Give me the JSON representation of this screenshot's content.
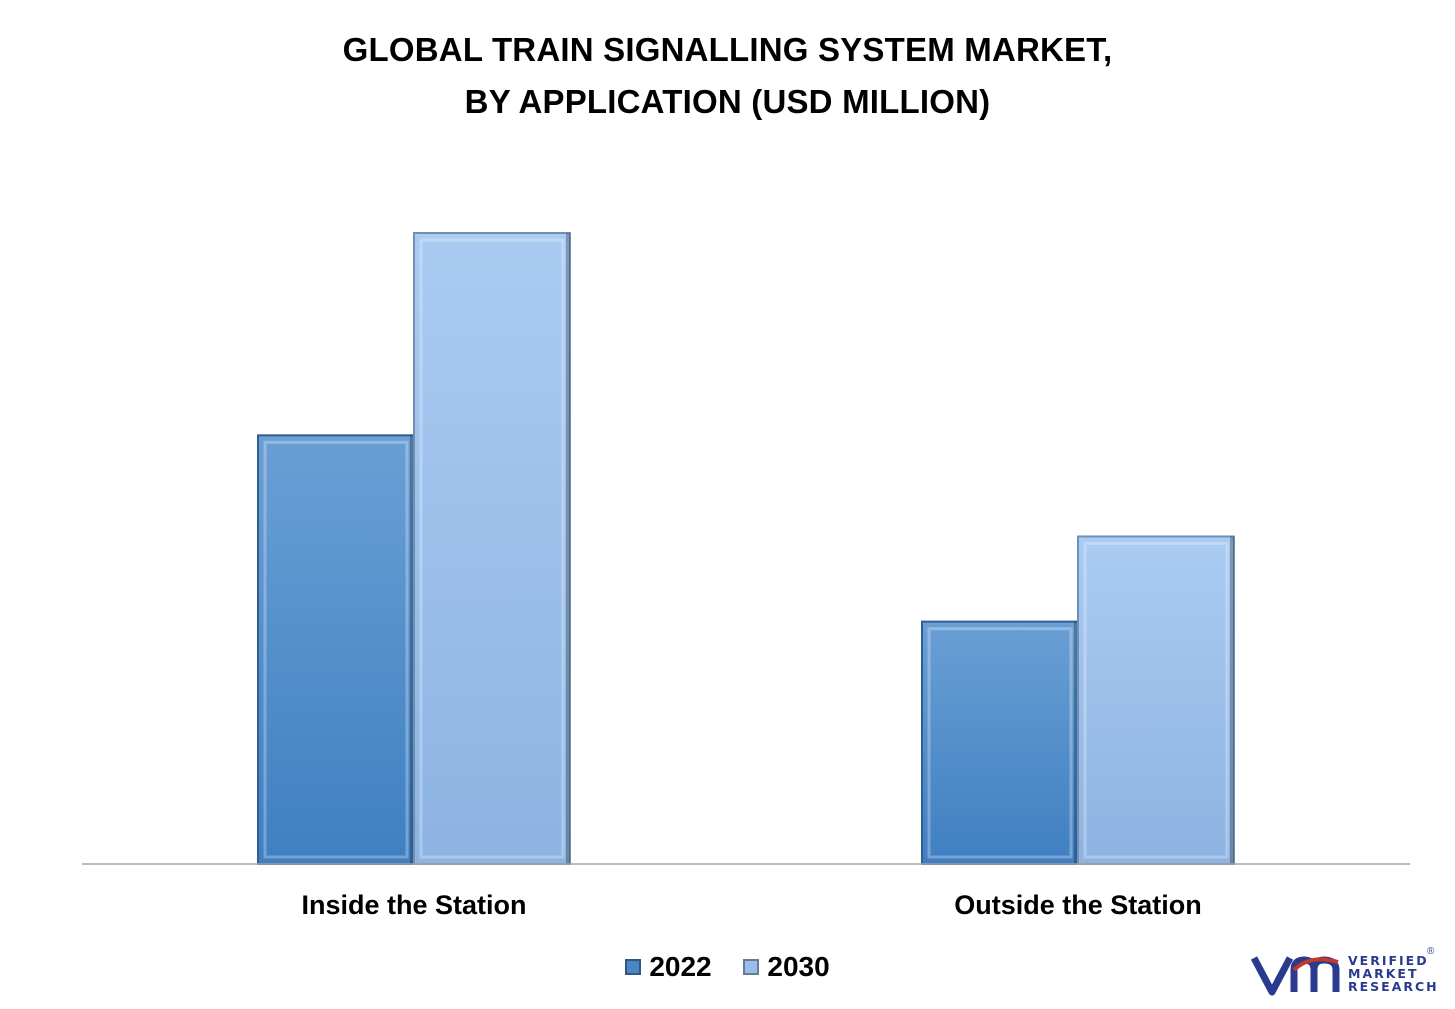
{
  "chart_data": {
    "type": "bar",
    "title_lines": [
      "GLOBAL TRAIN SIGNALLING SYSTEM MARKET,",
      "BY APPLICATION (USD MILLION)"
    ],
    "categories": [
      "Inside the Station",
      "Outside the Station"
    ],
    "series": [
      {
        "name": "2022",
        "values": [
          4280,
          2420
        ],
        "color": "#4a86c5"
      },
      {
        "name": "2030",
        "values": [
          6300,
          3270
        ],
        "color": "#9bbde9"
      }
    ],
    "ylim": [
      0,
      6300
    ],
    "grid": false,
    "legend_position": "bottom",
    "xlabel": "",
    "ylabel": ""
  },
  "branding": {
    "logo_lines": [
      "VERIFIED",
      "MARKET",
      "RESEARCH"
    ],
    "registered_mark": "®",
    "logo_color": "#2a3b8f"
  }
}
